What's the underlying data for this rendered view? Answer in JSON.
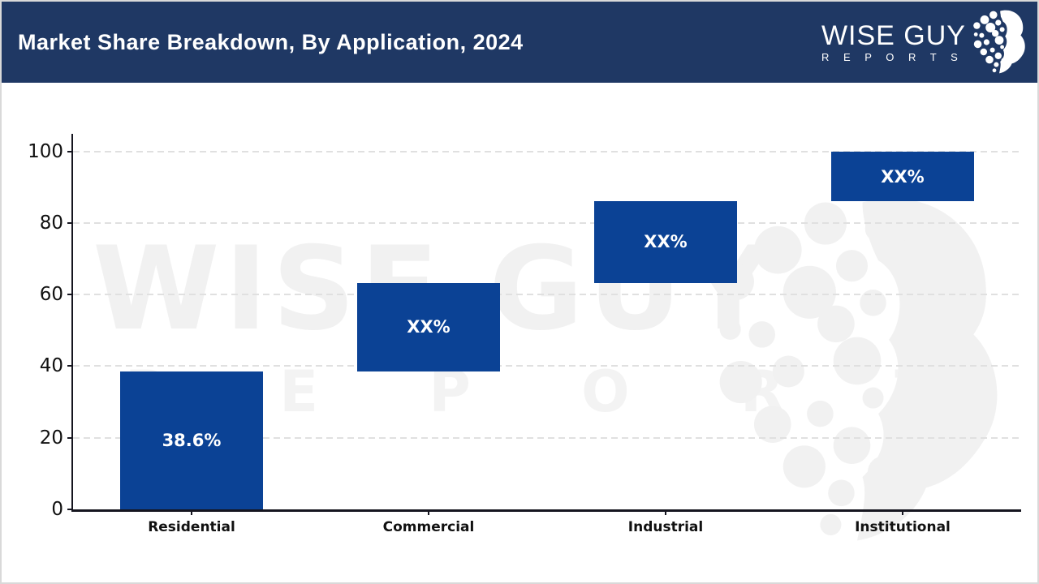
{
  "header": {
    "title": "Market Share Breakdown, By Application, 2024",
    "logo": {
      "line1": "WISE GUY",
      "line2": "R E P O R T S"
    }
  },
  "watermark": {
    "line1": "WISE GUY",
    "line2": "R E P O R T S"
  },
  "colors": {
    "header_bg": "#1f3864",
    "bar": "#0b4295",
    "bar_label": "#ffffff",
    "gridline": "#e0e0e0",
    "axis": "#15151f",
    "watermark": "#f1f1f1"
  },
  "chart_data": {
    "type": "bar",
    "subtype": "waterfall",
    "title": "Market Share Breakdown, By Application, 2024",
    "categories": [
      "Residential",
      "Commercial",
      "Industrial",
      "Institutional"
    ],
    "bars": [
      {
        "category": "Residential",
        "start": 0,
        "end": 38.6,
        "label": "38.6%"
      },
      {
        "category": "Commercial",
        "start": 38.6,
        "end": 63.2,
        "label": "XX%"
      },
      {
        "category": "Industrial",
        "start": 63.2,
        "end": 86.1,
        "label": "XX%"
      },
      {
        "category": "Institutional",
        "start": 86.1,
        "end": 99.8,
        "label": "XX%"
      }
    ],
    "xlabel": "",
    "ylabel": "",
    "ylim": [
      0,
      100
    ],
    "yticks": [
      0,
      20,
      40,
      60,
      80,
      100
    ],
    "grid": "horizontal-dashed",
    "legend": "none",
    "bar_color": "#0b4295",
    "bar_label_color": "#ffffff"
  }
}
